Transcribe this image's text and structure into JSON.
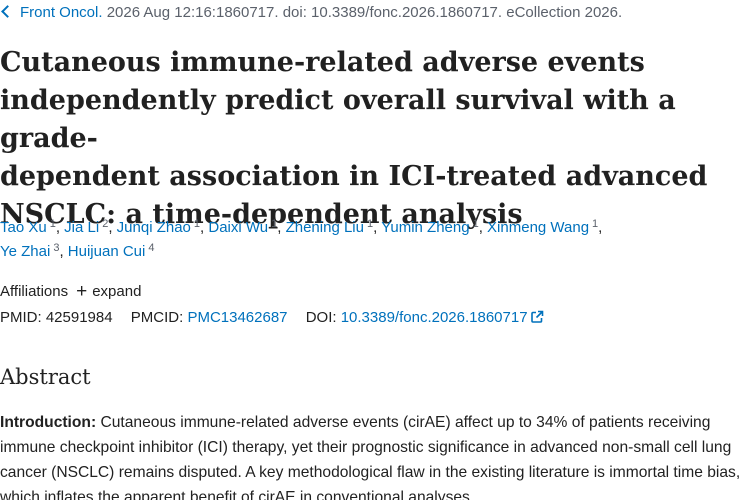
{
  "citation": {
    "journal": "Front Oncol.",
    "details": "2026 Aug 12:16:1860717. doi: 10.3389/fonc.2026.1860717. eCollection 2026."
  },
  "article": {
    "title_lines": [
      "Cutaneous immune-related adverse events",
      "independently predict overall survival with a grade-",
      "dependent association in ICI-treated advanced",
      "NSCLC: a time-dependent analysis"
    ]
  },
  "authors": [
    {
      "name": "Tao Xu",
      "aff": "1"
    },
    {
      "name": "Jia Li",
      "aff": "2"
    },
    {
      "name": "Junqi Zhao",
      "aff": "1"
    },
    {
      "name": "Daixi Wu",
      "aff": "1"
    },
    {
      "name": "Zhening Liu",
      "aff": "1"
    },
    {
      "name": "Yumin Zheng",
      "aff": "1"
    },
    {
      "name": "Xinmeng Wang",
      "aff": "1"
    },
    {
      "name": "Ye Zhai",
      "aff": "3"
    },
    {
      "name": "Huijuan Cui",
      "aff": "4"
    }
  ],
  "affiliations": {
    "label": "Affiliations",
    "expand_label": "expand"
  },
  "identifiers": {
    "pmid_label": "PMID:",
    "pmid": "42591984",
    "pmcid_label": "PMCID:",
    "pmcid": "PMC13462687",
    "doi_label": "DOI:",
    "doi": "10.3389/fonc.2026.1860717"
  },
  "abstract": {
    "heading": "Abstract",
    "intro_label": "Introduction:",
    "intro_text": "Cutaneous immune-related adverse events (cirAE) affect up to 34% of patients receiving immune checkpoint inhibitor (ICI) therapy, yet their prognostic significance in advanced non-small cell lung cancer (NSCLC) remains disputed. A key methodological flaw in the existing literature is immortal time bias, which inflates the apparent benefit of cirAE in conventional analyses."
  },
  "colors": {
    "link": "#0071bc",
    "text": "#212121",
    "muted": "#5b616b"
  }
}
